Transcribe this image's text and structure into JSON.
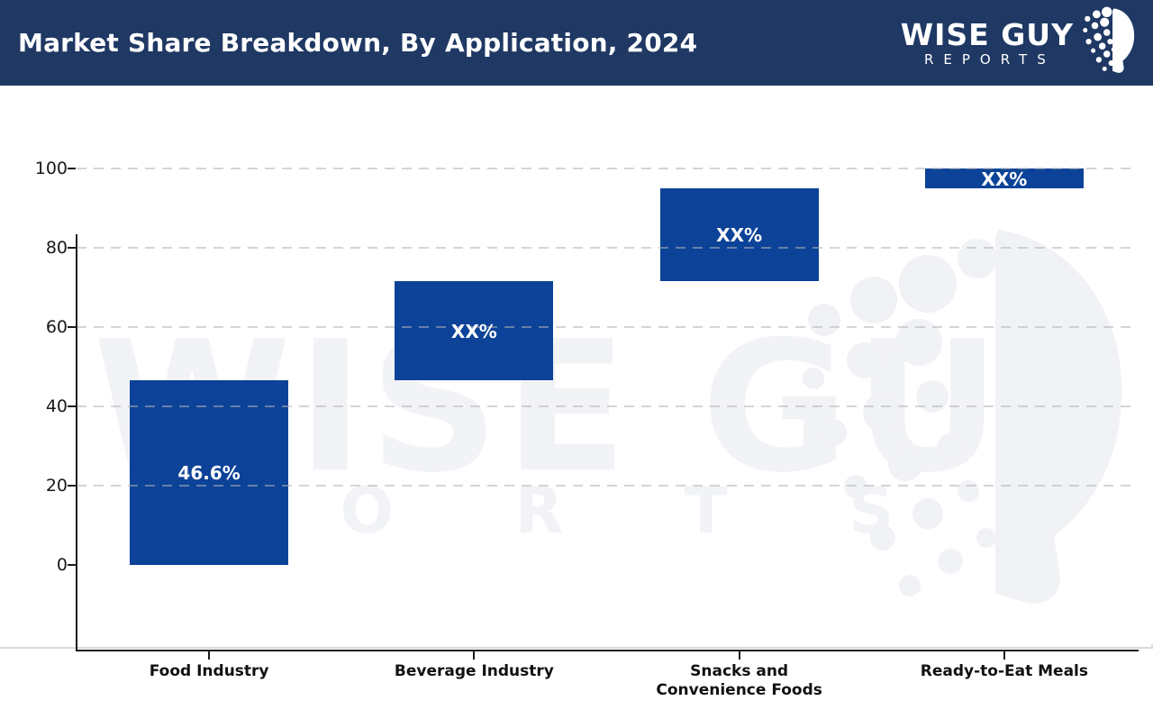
{
  "header": {
    "title": "Market Share Breakdown, By Application, 2024",
    "bg_color": "#1f3864",
    "logo": {
      "line1": "WISE GUY",
      "line2": "REPORTS"
    }
  },
  "chart_data": {
    "type": "bar",
    "subtype": "waterfall",
    "title": "Market Share Breakdown, By Application, 2024",
    "categories": [
      "Food Industry",
      "Beverage Industry",
      "Snacks and Convenience Foods",
      "Ready-to-Eat Meals"
    ],
    "segments": [
      {
        "category": "Food Industry",
        "start": 0,
        "end": 46.6,
        "label": "46.6%"
      },
      {
        "category": "Beverage Industry",
        "start": 46.6,
        "end": 71.6,
        "label": "XX%"
      },
      {
        "category": "Snacks and Convenience Foods",
        "start": 71.6,
        "end": 95.0,
        "label": "XX%"
      },
      {
        "category": "Ready-to-Eat Meals",
        "start": 95.0,
        "end": 100.0,
        "label": "XX%"
      }
    ],
    "yticks": [
      0,
      20,
      40,
      60,
      80,
      100
    ],
    "ylim": [
      0,
      105
    ],
    "xlabel": "",
    "ylabel": "",
    "grid": {
      "horizontal": true,
      "style": "dashed"
    },
    "legend": "none",
    "bar_color": "#0c4398",
    "value_label_color": "#ffffff",
    "watermark": {
      "line1": "WISE GU",
      "line2": "P O R T S"
    }
  }
}
